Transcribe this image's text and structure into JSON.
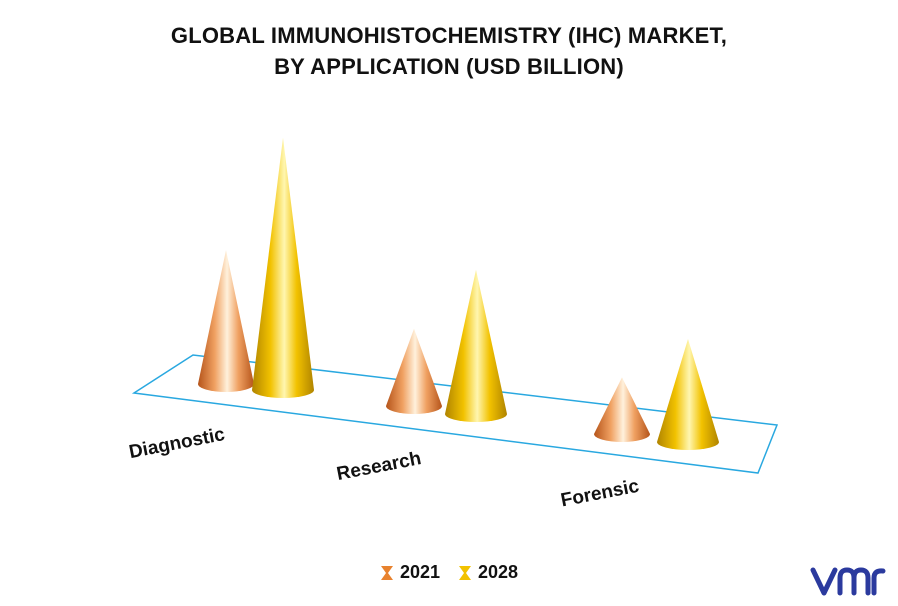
{
  "title": {
    "line1": "GLOBAL IMMUNOHISTOCHEMISTRY (IHC) MARKET,",
    "line2": "BY APPLICATION (USD BILLION)"
  },
  "chart_data": {
    "type": "bar",
    "style": "3d-cone",
    "categories": [
      "Diagnostic",
      "Research",
      "Forensic"
    ],
    "series": [
      {
        "name": "2021",
        "values": [
          1.3,
          0.75,
          0.55
        ],
        "color": "#E8822E"
      },
      {
        "name": "2028",
        "values": [
          2.45,
          1.4,
          1.0
        ],
        "color": "#F2C200"
      }
    ],
    "ylim": [
      0,
      2.6
    ],
    "grid": false,
    "legend": "bottom-center"
  },
  "colors": {
    "floor_outline": "#29A8E0",
    "logo": "#2B3A9E"
  },
  "logo": {
    "name": "vmr-logo"
  }
}
